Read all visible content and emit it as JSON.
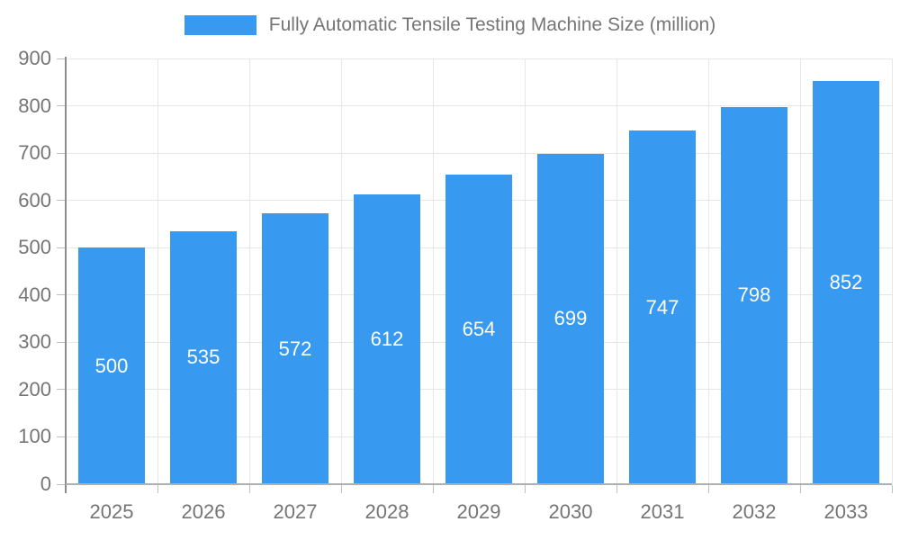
{
  "legend": {
    "label": "Fully Automatic Tensile Testing Machine Size (million)"
  },
  "chart_data": {
    "type": "bar",
    "title": "Fully Automatic Tensile Testing Machine Size (million)",
    "categories": [
      "2025",
      "2026",
      "2027",
      "2028",
      "2029",
      "2030",
      "2031",
      "2032",
      "2033"
    ],
    "values": [
      500,
      535,
      572,
      612,
      654,
      699,
      747,
      798,
      852
    ],
    "xlabel": "",
    "ylabel": "",
    "ylim": [
      0,
      900
    ],
    "ytick_step": 100,
    "ytick_labels": [
      "0",
      "100",
      "200",
      "300",
      "400",
      "500",
      "600",
      "700",
      "800",
      "900"
    ],
    "grid": true,
    "legend_position": "top-center",
    "value_labels": "inside-center",
    "colors": {
      "bar": "#3899f0",
      "value_label": "#ffffff",
      "axis_text": "#757575",
      "gridline": "#e6e6e6",
      "y_axis_line": "#8c8c8c",
      "x_axis_line": "#b0b0b0"
    }
  }
}
